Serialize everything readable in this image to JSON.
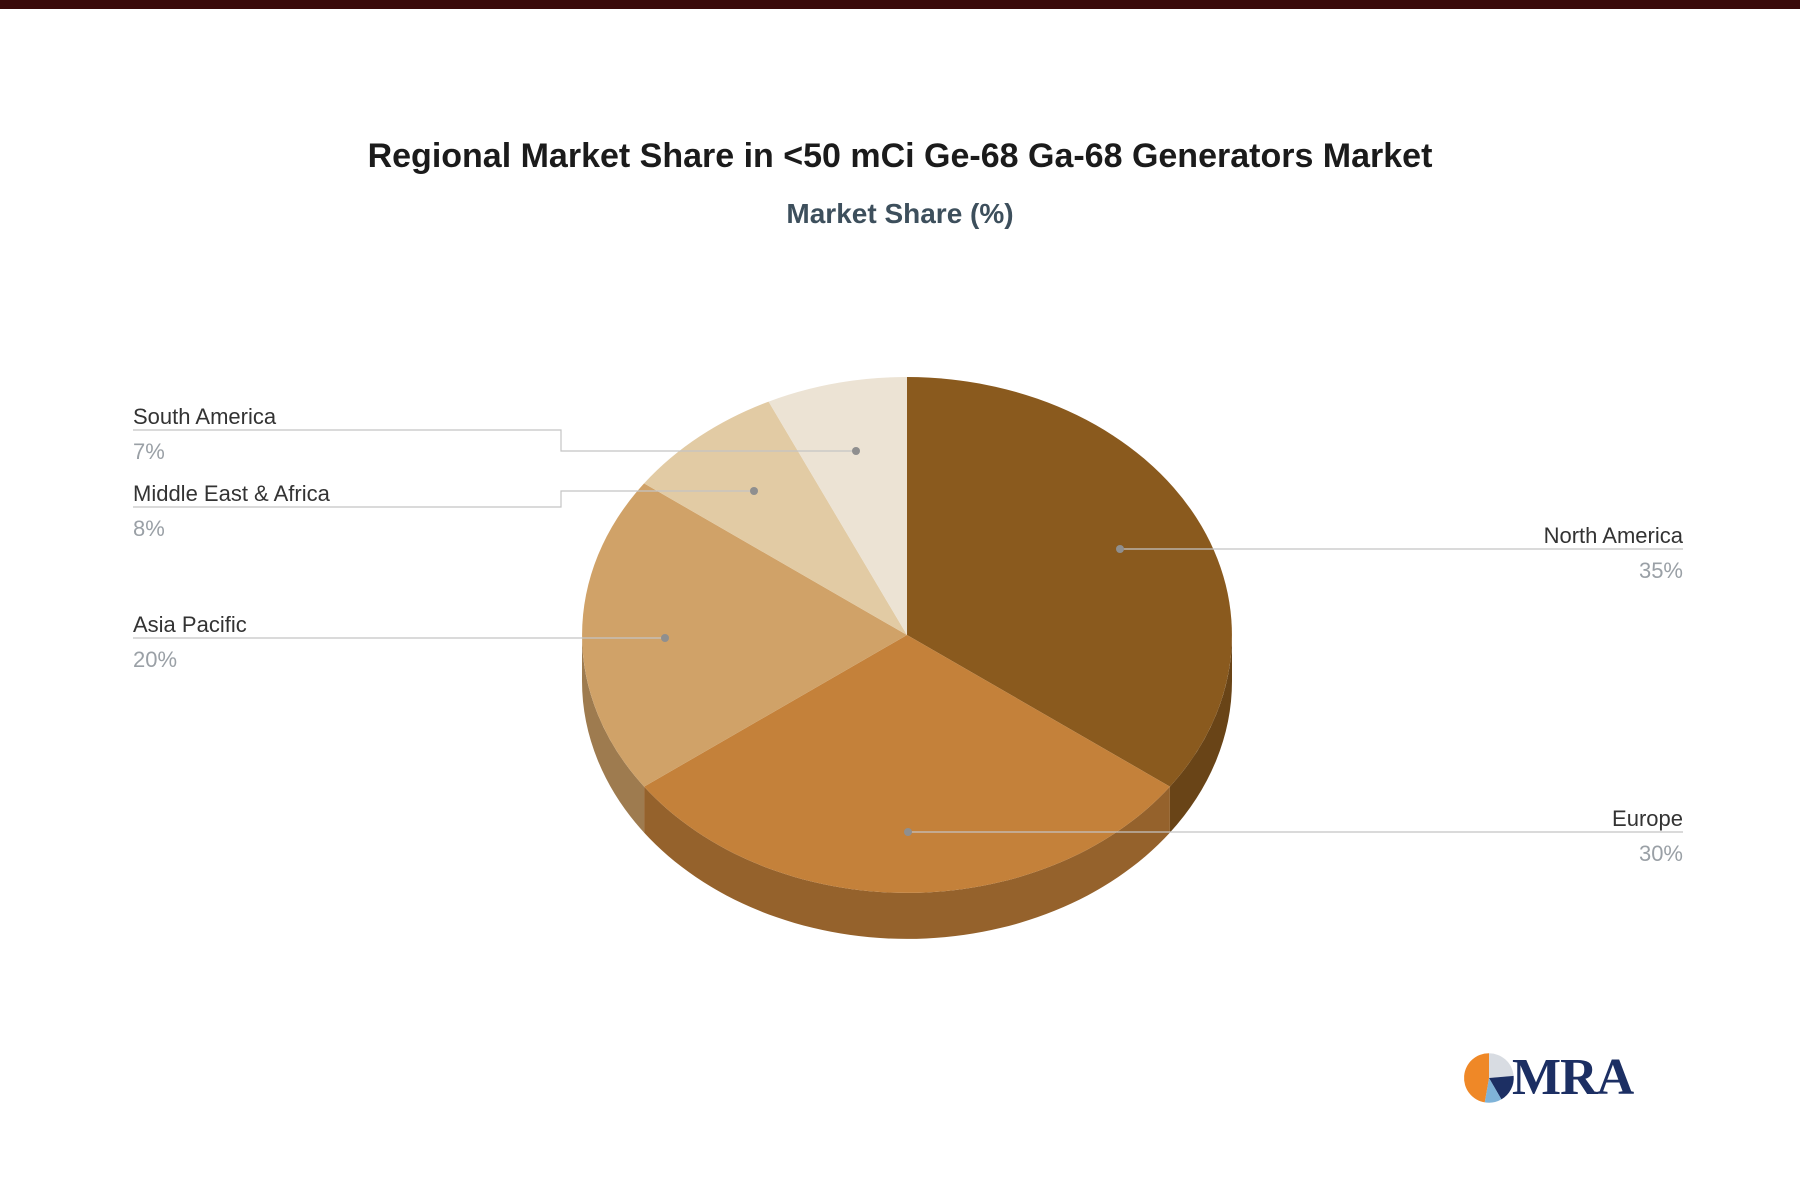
{
  "title": "Regional Market Share in <50 mCi Ge-68 Ga-68 Generators Market",
  "subtitle": "Market Share (%)",
  "chart_data": {
    "type": "pie",
    "style": "3d",
    "title": "Regional Market Share in <50 mCi Ge-68 Ga-68 Generators Market",
    "subtitle": "Market Share (%)",
    "unit": "%",
    "start_angle_deg": 0,
    "direction": "clockwise",
    "legend": "none",
    "label_style": "callout-with-leader-lines",
    "categories": [
      "North America",
      "Europe",
      "Asia Pacific",
      "Middle East & Africa",
      "South America"
    ],
    "values": [
      35,
      30,
      20,
      8,
      7
    ],
    "percent_labels": [
      "35%",
      "30%",
      "20%",
      "8%",
      "7%"
    ],
    "colors": [
      "#8a5a1e",
      "#c4813a",
      "#d0a268",
      "#e2cba4",
      "#ece3d4"
    ]
  },
  "palette": {
    "top_strip": "#3a0a0a",
    "title_text": "#1b1b1b",
    "subtitle_text": "#3d4f5c",
    "label_text": "#333333",
    "percent_text": "#9aa0a6",
    "leader_line": "#c4c4c4"
  },
  "logo": {
    "text": "MRA",
    "colors": {
      "orange": "#ef8827",
      "navy": "#1c2f63",
      "light_blue": "#7fb3d8",
      "light_gray": "#d8dce2"
    }
  }
}
